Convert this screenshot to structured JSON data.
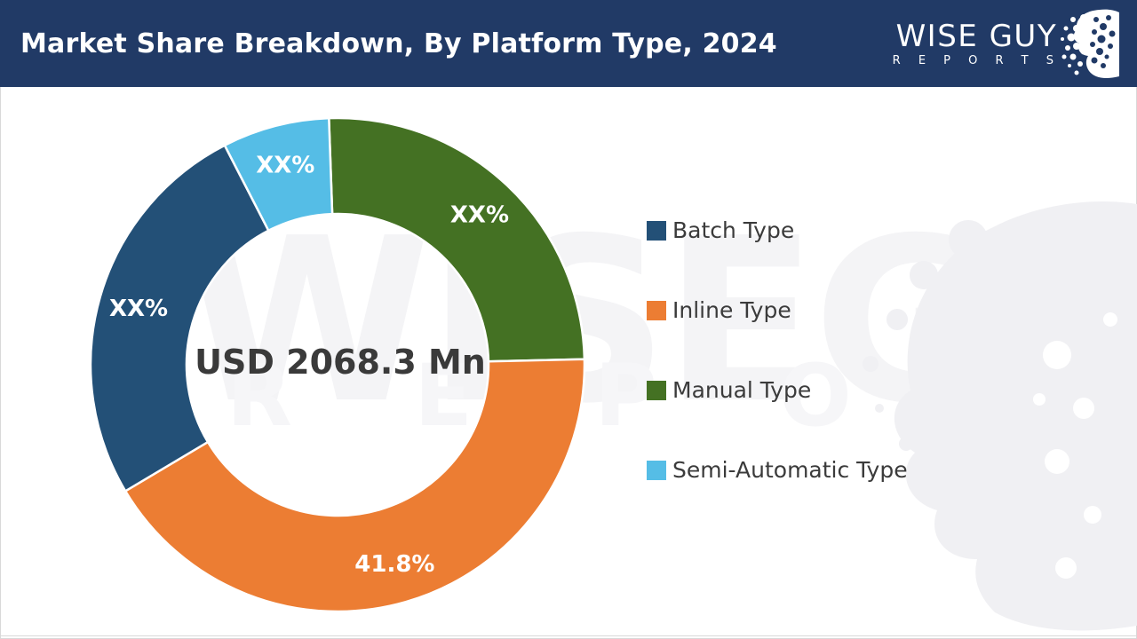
{
  "header": {
    "title": "Market Share Breakdown, By Platform Type, 2024",
    "bar_color": "#213a66",
    "logo": {
      "line1": "WISE GUY",
      "line2": "R E P O R T S"
    }
  },
  "watermark": {
    "line1": "WISEGUY",
    "line2": "R E P O R T S"
  },
  "chart_data": {
    "type": "donut",
    "title": "Market Share Breakdown, By Platform Type, 2024",
    "center_label": "USD 2068.3 Mn",
    "start_angle_deg": -2,
    "slices": [
      {
        "name": "Manual Type",
        "display_label": "XX%",
        "value_pct_drawn": 25.2,
        "color": "#447123"
      },
      {
        "name": "Inline Type",
        "display_label": "41.8%",
        "value_pct_drawn": 41.8,
        "color": "#ec7d33"
      },
      {
        "name": "Batch Type",
        "display_label": "XX%",
        "value_pct_drawn": 26.0,
        "color": "#235077"
      },
      {
        "name": "Semi-Automatic Type",
        "display_label": "XX%",
        "value_pct_drawn": 7.0,
        "color": "#55bde6"
      }
    ],
    "legend_position": "right",
    "notes": "Only Inline Type percentage is disclosed (41.8%); other slices masked as XX%. Drawn percents estimated from arc angles."
  },
  "legend": {
    "items": [
      {
        "label": "Batch Type",
        "color": "#235077"
      },
      {
        "label": "Inline Type",
        "color": "#ec7d33"
      },
      {
        "label": "Manual Type",
        "color": "#447123"
      },
      {
        "label": "Semi-Automatic Type",
        "color": "#55bde6"
      }
    ]
  }
}
